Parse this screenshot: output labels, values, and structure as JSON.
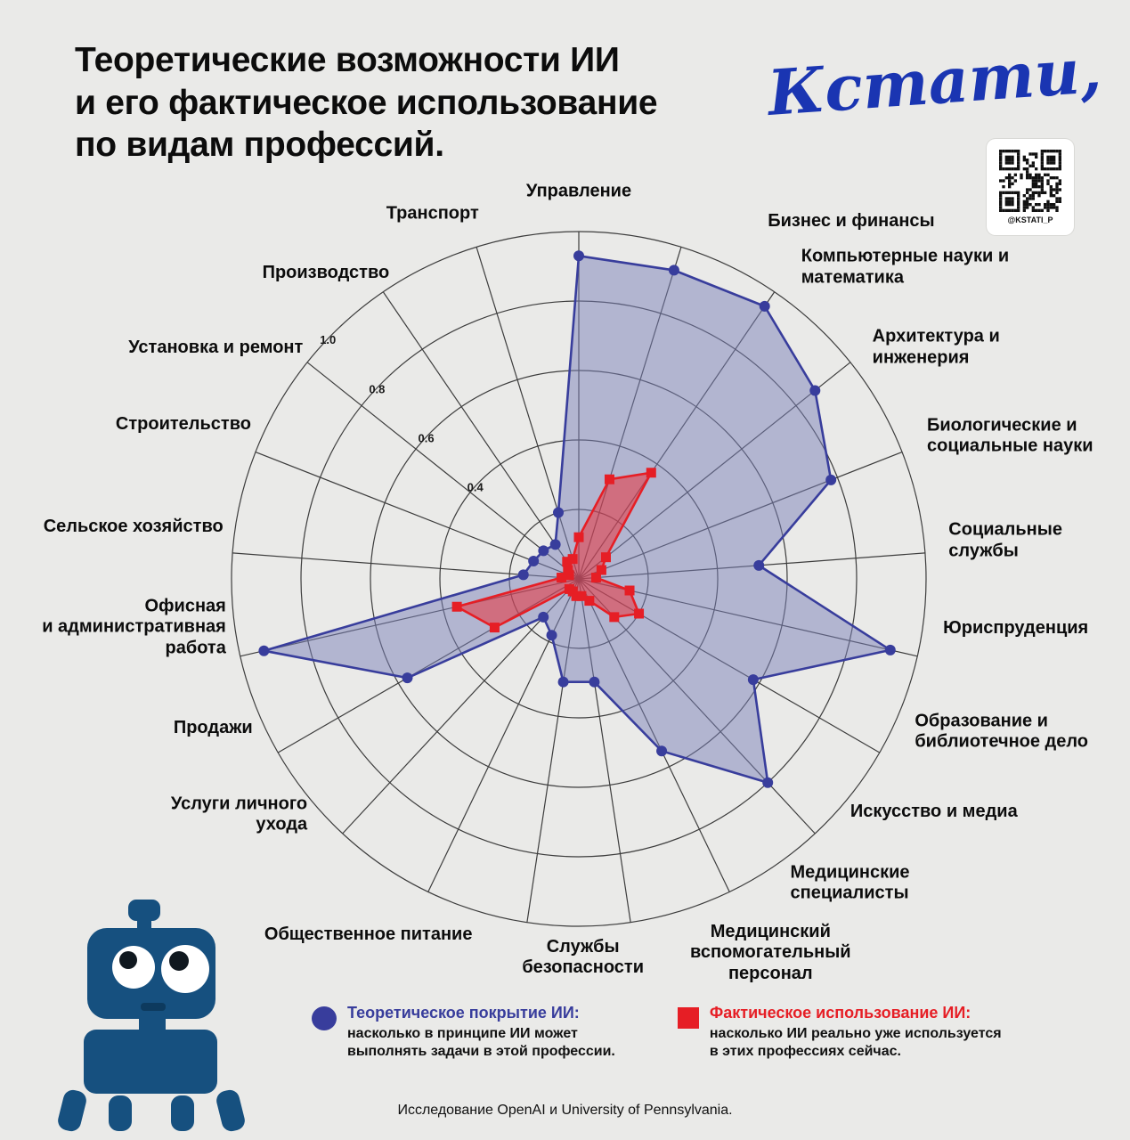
{
  "title": "Теоретические возможности ИИ\nи его фактическое использование\nпо видам профессий.",
  "branding": {
    "logo_text": "Кстати,",
    "qr_handle": "@KSTATI_P"
  },
  "chart_data": {
    "type": "radar",
    "title": "Теоретические возможности ИИ и его фактическое использование по видам профессий",
    "max": 1.0,
    "rings": [
      0.2,
      0.4,
      0.6,
      0.8,
      1.0
    ],
    "scale_ticks": [
      0.4,
      0.6,
      0.8,
      1.0
    ],
    "grid": true,
    "legend_position": "bottom",
    "grid_color": "#3d3d3d",
    "categories": [
      "Управление",
      "Бизнес и финансы",
      "Компьютерные науки и\nматематика",
      "Архитектура и\nинженерия",
      "Биологические и\nсоциальные науки",
      "Социальные\nслужбы",
      "Юриспруденция",
      "Образование и\nбиблиотечное дело",
      "Искусство и медиа",
      "Медицинские\nспециалисты",
      "Медицинский\nвспомогательный\nперсонал",
      "Службы\nбезопасности",
      "Общественное питание",
      "Услуги личного\nухода",
      "Продажи",
      "Офисная\nи административная\nработа",
      "Сельское хозяйство",
      "Строительство",
      "Установка и ремонт",
      "Производство",
      "Транспорт"
    ],
    "series": [
      {
        "name": "Теоретическое покрытие ИИ",
        "marker": "circle",
        "color": "#383d9c",
        "fill": "rgba(122,128,184,0.5)",
        "values": [
          0.93,
          0.93,
          0.95,
          0.87,
          0.78,
          0.52,
          0.92,
          0.58,
          0.8,
          0.55,
          0.3,
          0.3,
          0.18,
          0.15,
          0.57,
          0.93,
          0.16,
          0.14,
          0.13,
          0.12,
          0.2
        ]
      },
      {
        "name": "Фактическое использование ИИ",
        "marker": "square",
        "color": "#e61e25",
        "fill": "rgba(238,40,45,0.5)",
        "values": [
          0.12,
          0.3,
          0.37,
          0.1,
          0.07,
          0.05,
          0.15,
          0.2,
          0.15,
          0.07,
          0.05,
          0.05,
          0.04,
          0.04,
          0.28,
          0.36,
          0.05,
          0.03,
          0.04,
          0.06,
          0.06
        ]
      }
    ]
  },
  "legend": {
    "theoretical": {
      "title": "Теоретическое покрытие ИИ:",
      "desc": "насколько в принципе ИИ может\nвыполнять задачи в этой профессии."
    },
    "actual": {
      "title": "Фактическое использование ИИ:",
      "desc": "насколько ИИ реально уже используется\nв этих профессиях сейчас."
    }
  },
  "footer": "Исследование OpenAI и University of Pennsylvania."
}
